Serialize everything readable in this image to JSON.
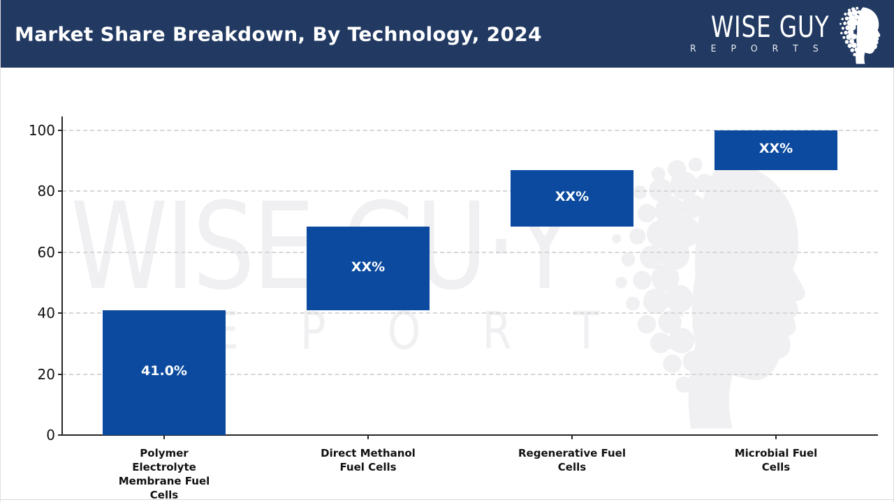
{
  "header": {
    "title": "Market Share Breakdown, By Technology, 2024",
    "logo": {
      "name": "Wise Guy Reports",
      "line1": "WISE GUY",
      "line2": "R E P O R T S"
    }
  },
  "watermark": {
    "line1": "WISE GU·Y",
    "line2": "R E P O R T S"
  },
  "colors": {
    "header_bg": "#223a62",
    "bar": "#0b4a9e",
    "bar_label": "#ffffff",
    "grid": "#d6d6d6",
    "axis": "#262626",
    "tick_label": "#111111",
    "watermark": "#f0f0f2"
  },
  "chart_data": {
    "type": "bar",
    "subtype": "waterfall",
    "title": "Market Share Breakdown, By Technology, 2024",
    "xlabel": "",
    "ylabel": "",
    "ylim": [
      0,
      100
    ],
    "yticks": [
      0,
      20,
      40,
      60,
      80,
      100
    ],
    "grid": "horizontal-dashed",
    "legend": "none",
    "categories": [
      "Polymer Electrolyte Membrane Fuel Cells",
      "Direct Methanol Fuel Cells",
      "Regenerative Fuel Cells",
      "Microbial Fuel Cells"
    ],
    "category_label_lines": [
      [
        "Polymer",
        "Electrolyte",
        "Membrane Fuel",
        "Cells"
      ],
      [
        "Direct Methanol",
        "Fuel Cells"
      ],
      [
        "Regenerative Fuel",
        "Cells"
      ],
      [
        "Microbial Fuel",
        "Cells"
      ]
    ],
    "segments": [
      {
        "category": "Polymer Electrolyte Membrane Fuel Cells",
        "start": 0,
        "end": 41.0,
        "label": "41.0%"
      },
      {
        "category": "Direct Methanol Fuel Cells",
        "start": 41.0,
        "end": 68.5,
        "label": "XX%"
      },
      {
        "category": "Regenerative Fuel Cells",
        "start": 68.5,
        "end": 87.0,
        "label": "XX%"
      },
      {
        "category": "Microbial Fuel Cells",
        "start": 87.0,
        "end": 100.0,
        "label": "XX%"
      }
    ]
  }
}
